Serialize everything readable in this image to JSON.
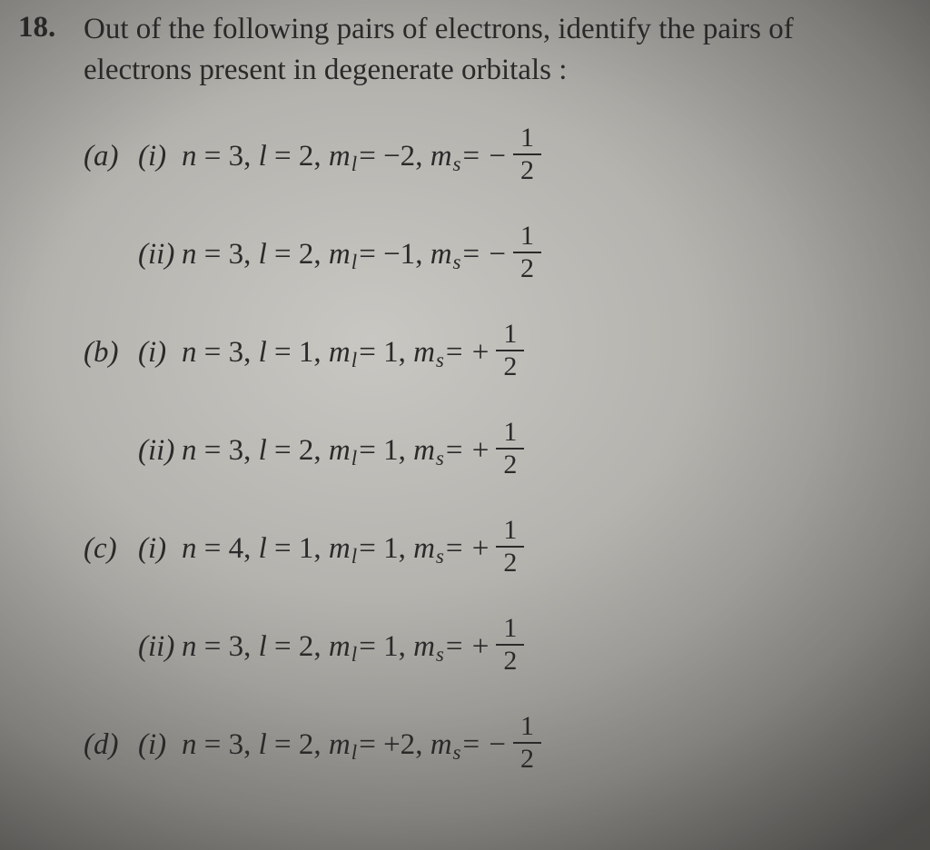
{
  "question": {
    "number": "18.",
    "text": "Out of the following pairs of electrons, identify the pairs of electrons present in degenerate orbitals :"
  },
  "options": [
    {
      "label": "(a)",
      "items": [
        {
          "sub": "(i)",
          "n": "3",
          "l": "2",
          "ml": "−2",
          "ms_sign": "−",
          "ms_num": "1",
          "ms_den": "2"
        },
        {
          "sub": "(ii)",
          "n": "3",
          "l": "2",
          "ml": "−1",
          "ms_sign": "−",
          "ms_num": "1",
          "ms_den": "2"
        }
      ]
    },
    {
      "label": "(b)",
      "items": [
        {
          "sub": "(i)",
          "n": "3",
          "l": "1",
          "ml": "1",
          "ms_sign": "+",
          "ms_num": "1",
          "ms_den": "2"
        },
        {
          "sub": "(ii)",
          "n": "3",
          "l": "2",
          "ml": "1",
          "ms_sign": "+",
          "ms_num": "1",
          "ms_den": "2"
        }
      ]
    },
    {
      "label": "(c)",
      "items": [
        {
          "sub": "(i)",
          "n": "4",
          "l": "1",
          "ml": "1",
          "ms_sign": "+",
          "ms_num": "1",
          "ms_den": "2"
        },
        {
          "sub": "(ii)",
          "n": "3",
          "l": "2",
          "ml": "1",
          "ms_sign": "+",
          "ms_num": "1",
          "ms_den": "2"
        }
      ]
    },
    {
      "label": "(d)",
      "items": [
        {
          "sub": "(i)",
          "n": "3",
          "l": "2",
          "ml": "+2",
          "ms_sign": "−",
          "ms_num": "1",
          "ms_den": "2"
        }
      ]
    }
  ]
}
